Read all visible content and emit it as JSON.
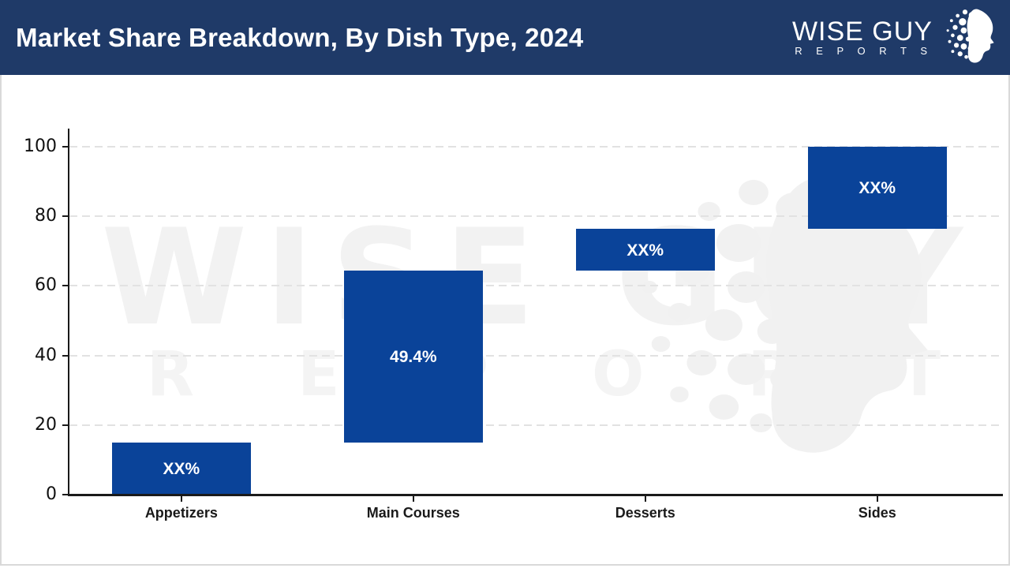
{
  "header": {
    "title": "Market Share Breakdown, By Dish Type, 2024",
    "bg_color": "#1f3a68",
    "logo": {
      "name": "WISE GUY",
      "sub": "R E P O R T S"
    }
  },
  "watermark": {
    "line1": "WISE GUY",
    "line2": "R E P O R T S"
  },
  "chart_data": {
    "type": "bar",
    "variant": "waterfall",
    "title": "Market Share Breakdown, By Dish Type, 2024",
    "xlabel": "",
    "ylabel": "",
    "ylim": [
      0,
      100
    ],
    "yticks": [
      0,
      20,
      40,
      60,
      80,
      100
    ],
    "grid": "horizontal-dashed",
    "legend": "none",
    "categories": [
      "Appetizers",
      "Main Courses",
      "Desserts",
      "Sides"
    ],
    "bars": [
      {
        "category": "Appetizers",
        "start": 0,
        "end": 15,
        "value_label": "XX%"
      },
      {
        "category": "Main Courses",
        "start": 15,
        "end": 64.4,
        "value_label": "49.4%",
        "value": 49.4
      },
      {
        "category": "Desserts",
        "start": 64.4,
        "end": 76.4,
        "value_label": "XX%"
      },
      {
        "category": "Sides",
        "start": 76.4,
        "end": 100,
        "value_label": "XX%"
      }
    ],
    "bar_color": "#0a4399",
    "bar_label_color": "#ffffff",
    "grid_color": "#e2e2e2",
    "axis_color": "#1a1a1a"
  }
}
